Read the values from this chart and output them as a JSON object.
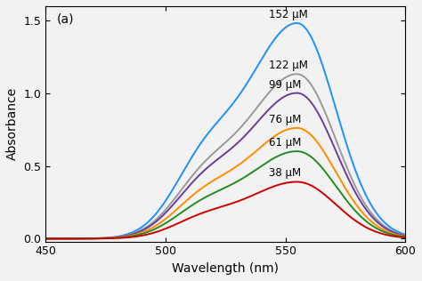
{
  "xlabel": "Wavelength (nm)",
  "ylabel": "Absorbance",
  "panel_label": "(a)",
  "xlim": [
    450,
    600
  ],
  "ylim": [
    -0.02,
    1.6
  ],
  "yticks": [
    0.0,
    0.5,
    1.0,
    1.5
  ],
  "xticks": [
    450,
    500,
    550,
    600
  ],
  "xmin": 440,
  "xmax": 610,
  "series": [
    {
      "label": "152 μM",
      "color": "#1e90ff",
      "peak": 1.48,
      "peak_wl": 555,
      "sigma_l": 22,
      "sigma_r": 16,
      "shoulder": 0.38,
      "shoulder_wl": 515,
      "sh_sigma": 13
    },
    {
      "label": "122 μM",
      "color": "#999999",
      "peak": 1.13,
      "peak_wl": 555,
      "sigma_l": 22,
      "sigma_r": 16,
      "shoulder": 0.29,
      "shoulder_wl": 515,
      "sh_sigma": 13
    },
    {
      "label": "99 μM",
      "color": "#6a3d9a",
      "peak": 1.0,
      "peak_wl": 555,
      "sigma_l": 22,
      "sigma_r": 16,
      "shoulder": 0.26,
      "shoulder_wl": 515,
      "sh_sigma": 13
    },
    {
      "label": "76 μM",
      "color": "#ff8c00",
      "peak": 0.76,
      "peak_wl": 555,
      "sigma_l": 22,
      "sigma_r": 16,
      "shoulder": 0.2,
      "shoulder_wl": 515,
      "sh_sigma": 13
    },
    {
      "label": "61 μM",
      "color": "#228b22",
      "peak": 0.6,
      "peak_wl": 555,
      "sigma_l": 22,
      "sigma_r": 16,
      "shoulder": 0.155,
      "shoulder_wl": 515,
      "sh_sigma": 13
    },
    {
      "label": "38 μM",
      "color": "#cc0000",
      "peak": 0.39,
      "peak_wl": 555,
      "sigma_l": 22,
      "sigma_r": 16,
      "shoulder": 0.1,
      "shoulder_wl": 515,
      "sh_sigma": 13
    }
  ],
  "label_offsets_wl": [
    543,
    543,
    543,
    543,
    543,
    543
  ],
  "label_offsets_abs": [
    1.5,
    1.15,
    1.02,
    0.78,
    0.62,
    0.41
  ],
  "axis_fontsize": 10,
  "tick_fontsize": 9,
  "label_fontsize": 8.5
}
